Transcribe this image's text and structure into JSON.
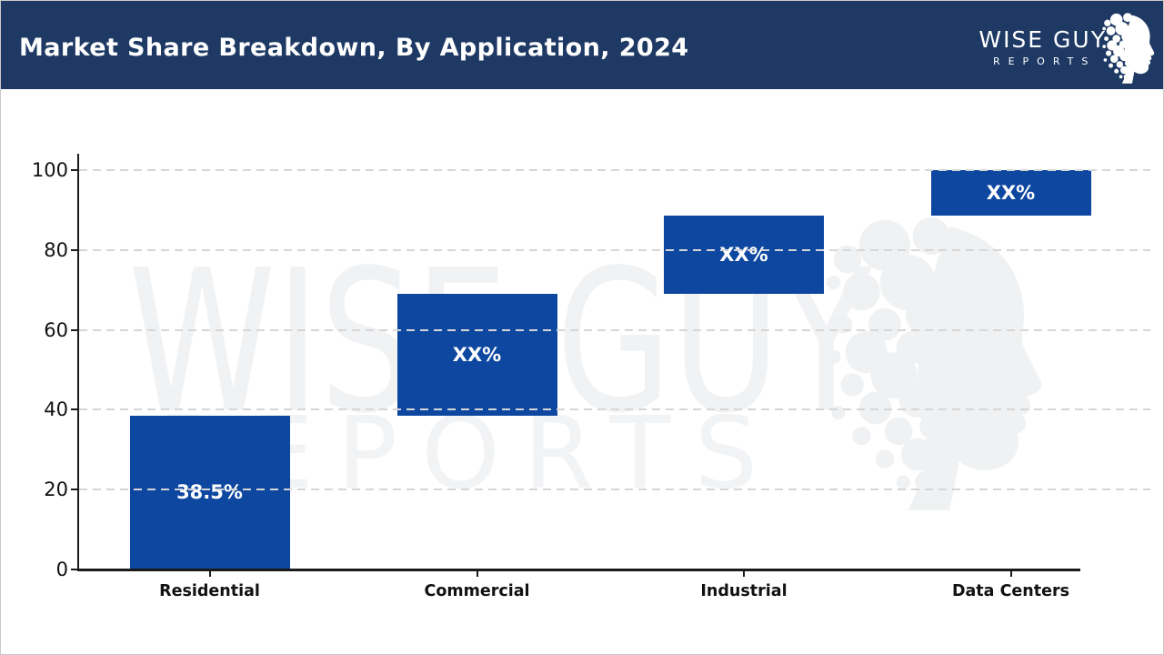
{
  "header": {
    "title": "Market Share Breakdown, By Application, 2024",
    "background": "#1e3a64",
    "logo": {
      "line1": "WISE GUY",
      "line2": "REPORTS",
      "icon": "dotted-face-profile"
    }
  },
  "watermark": {
    "line1": "WISE GUY",
    "line2": "REPORTS"
  },
  "chart_data": {
    "type": "waterfall-bar",
    "title": "Market Share Breakdown, By Application, 2024",
    "categories": [
      "Residential",
      "Commercial",
      "Industrial",
      "Data Centers"
    ],
    "segments": [
      {
        "category": "Residential",
        "start": 0,
        "end": 38.5,
        "label": "38.5%"
      },
      {
        "category": "Commercial",
        "start": 38.5,
        "end": 69,
        "label": "XX%"
      },
      {
        "category": "Industrial",
        "start": 69,
        "end": 88.5,
        "label": "XX%"
      },
      {
        "category": "Data Centers",
        "start": 88.5,
        "end": 100,
        "label": "XX%"
      }
    ],
    "xlabel": "",
    "ylabel": "",
    "ylim": [
      0,
      104
    ],
    "yticks": [
      0,
      20,
      40,
      60,
      80,
      100
    ],
    "grid": "horizontal-dashed-drawn-above-bars",
    "legend": "none",
    "bar_color": "#0d47a0",
    "bar_label_color": "#ffffff",
    "axis_color": "#1a1a1a",
    "grid_color": "#d6d6d6"
  }
}
